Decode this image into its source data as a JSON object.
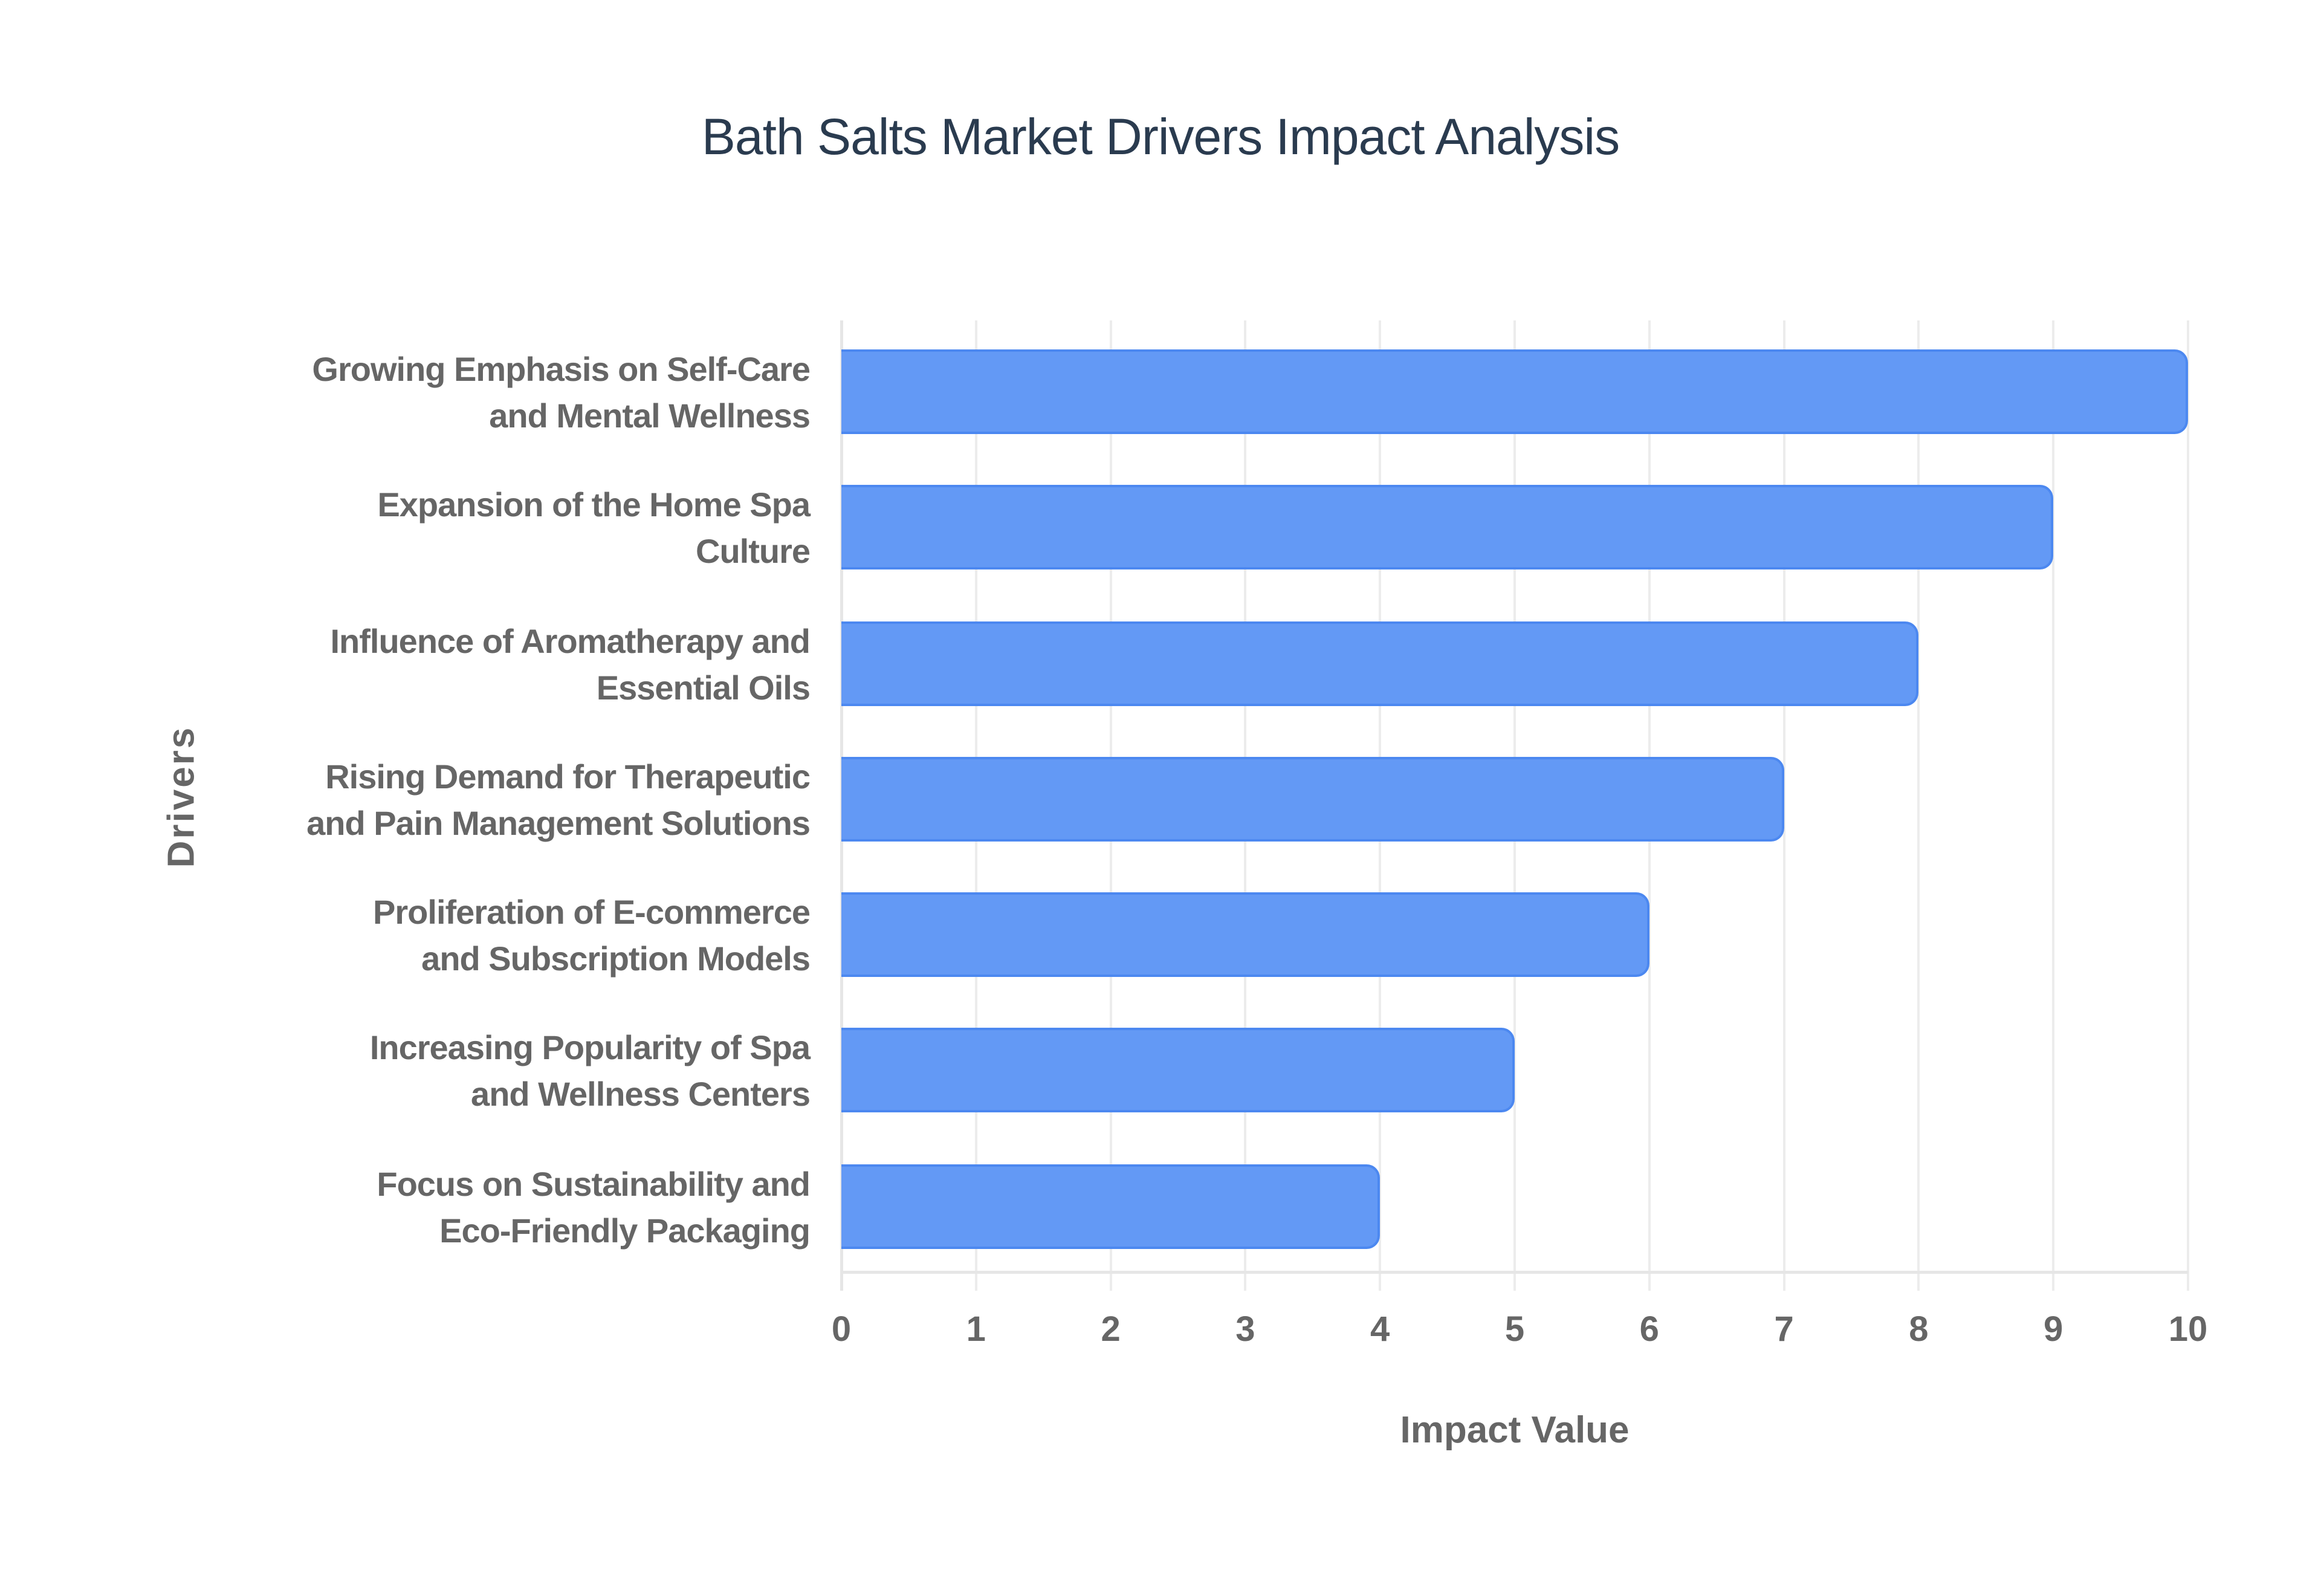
{
  "chart_data": {
    "type": "bar",
    "orientation": "horizontal",
    "title": "Bath Salts Market Drivers Impact Analysis",
    "xlabel": "Impact Value",
    "ylabel": "Drivers",
    "xlim": [
      0,
      10
    ],
    "xticks": [
      "0",
      "1",
      "2",
      "3",
      "4",
      "5",
      "6",
      "7",
      "8",
      "9",
      "10"
    ],
    "grid": true,
    "legend": "none",
    "bar_color": "#6399f5",
    "bar_border_color": "#4c88f0",
    "categories": [
      "Growing Emphasis on Self-Care and Mental Wellness",
      "Expansion of the Home Spa Culture",
      "Influence of Aromatherapy and Essential Oils",
      "Rising Demand for Therapeutic and Pain Management Solutions",
      "Proliferation of E-commerce and Subscription Models",
      "Increasing Popularity of Spa and Wellness Centers",
      "Focus on Sustainability and Eco-Friendly Packaging"
    ],
    "values": [
      10,
      9,
      8,
      7,
      6,
      5,
      4
    ]
  },
  "labels": {
    "l0a": "Growing Emphasis on Self-Care",
    "l0b": "and Mental Wellness",
    "l1a": "Expansion of the Home Spa",
    "l1b": "Culture",
    "l2a": "Influence of Aromatherapy and",
    "l2b": "Essential Oils",
    "l3a": "Rising Demand for Therapeutic",
    "l3b": "and Pain Management Solutions",
    "l4a": "Proliferation of E-commerce",
    "l4b": "and Subscription Models",
    "l5a": "Increasing Popularity of Spa",
    "l5b": "and Wellness Centers",
    "l6a": "Focus on Sustainability and",
    "l6b": "Eco-Friendly Packaging"
  }
}
